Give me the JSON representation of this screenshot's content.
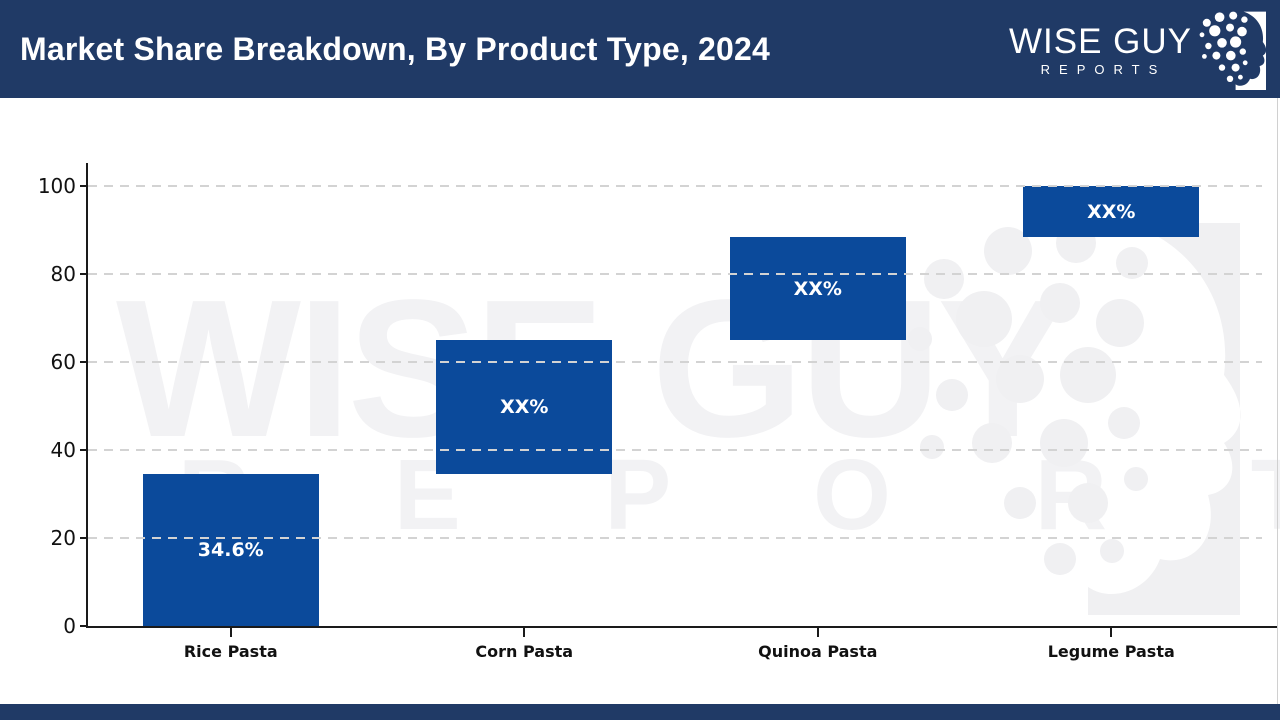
{
  "header": {
    "title": "Market Share Breakdown, By Product Type, 2024",
    "logo": {
      "line1": "WISE GUY",
      "line2": "REPORTS"
    }
  },
  "watermark": {
    "line1": "WISE GUY",
    "line2": "R E P O R T S"
  },
  "chart_data": {
    "type": "bar",
    "subtype": "waterfall",
    "title": "Market Share Breakdown, By Product Type, 2024",
    "categories": [
      "Rice Pasta",
      "Corn Pasta",
      "Quinoa Pasta",
      "Legume Pasta"
    ],
    "segments": [
      {
        "category": "Rice Pasta",
        "start": 0,
        "end": 34.6,
        "label": "34.6%"
      },
      {
        "category": "Corn Pasta",
        "start": 34.6,
        "end": 65.0,
        "label": "XX%"
      },
      {
        "category": "Quinoa Pasta",
        "start": 65.0,
        "end": 88.4,
        "label": "XX%"
      },
      {
        "category": "Legume Pasta",
        "start": 88.4,
        "end": 100,
        "label": "XX%"
      }
    ],
    "yticks": [
      0,
      20,
      40,
      60,
      80,
      100
    ],
    "ylim": [
      0,
      105
    ],
    "xlabel": "",
    "ylabel": "",
    "grid": "dashed-horizontal",
    "legend": "none",
    "bar_color": "#0b4a9b",
    "bar_label_color": "#ffffff",
    "axis_color": "#1a1a1a",
    "grid_color": "#d3d3d3",
    "header_color": "#203a66",
    "watermark_color": "#f2f2f4"
  }
}
